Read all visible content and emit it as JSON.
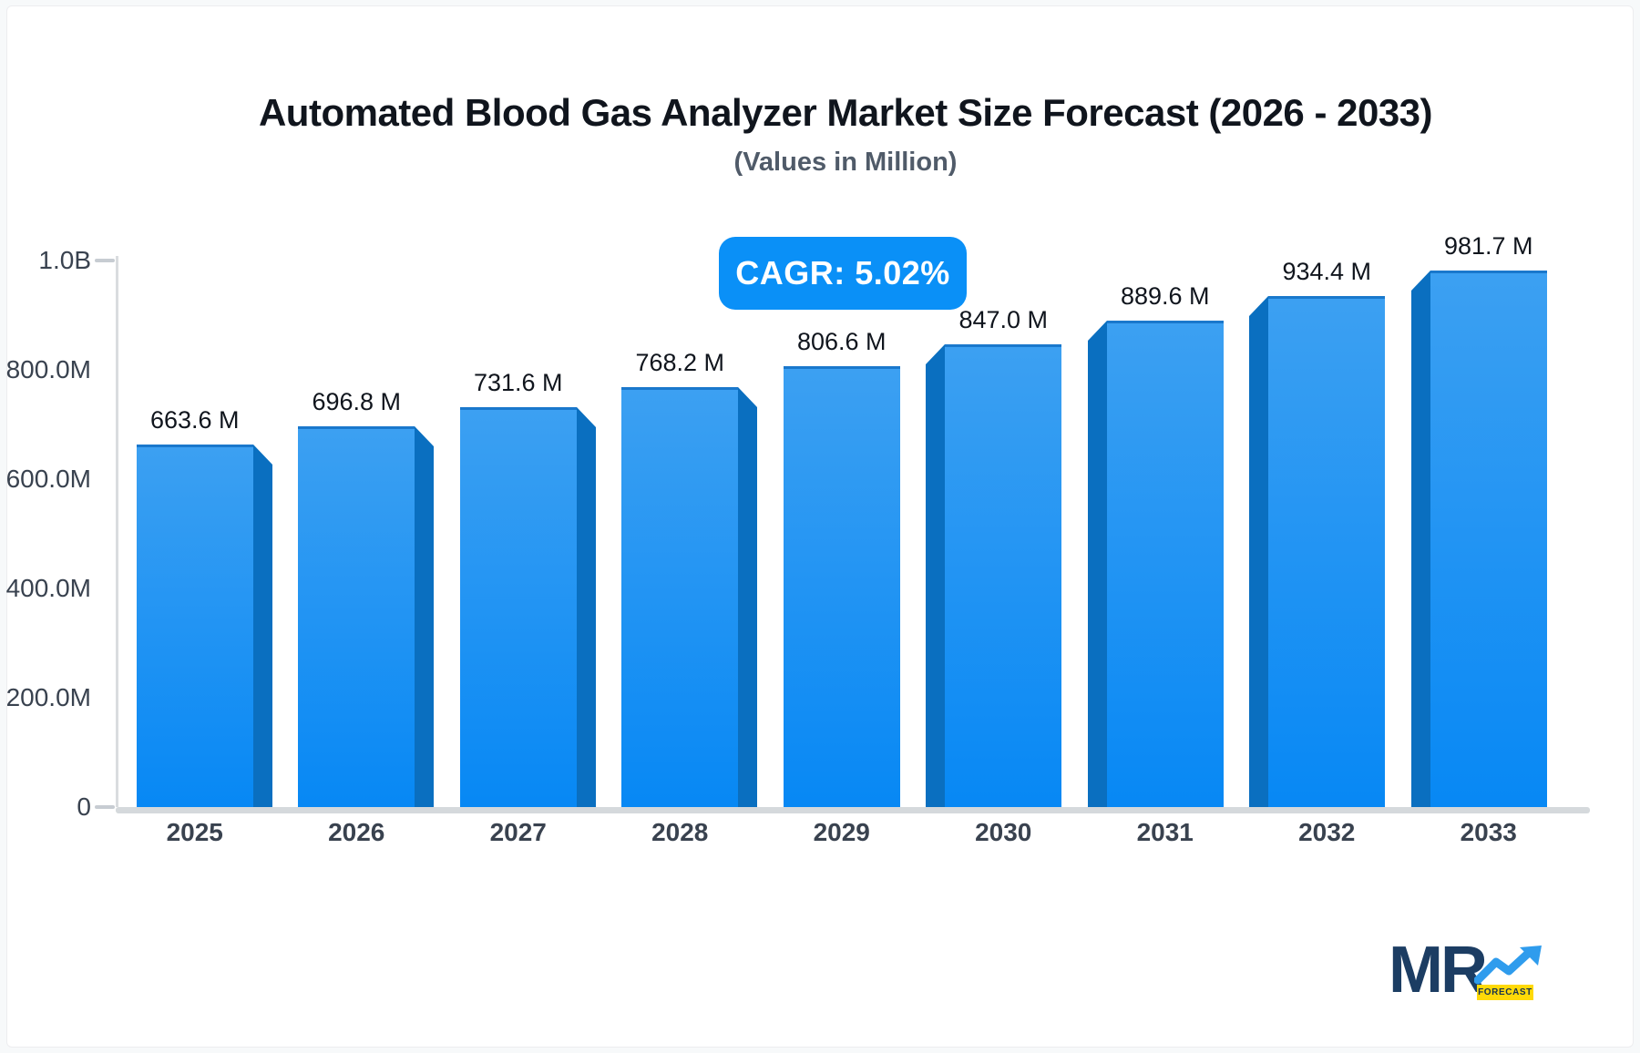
{
  "header": {
    "title": "Automated Blood Gas Analyzer Market Size Forecast (2026 - 2033)",
    "subtitle": "(Values in Million)"
  },
  "badge": {
    "label": "CAGR: 5.02%",
    "bg": "#0a90f7"
  },
  "chart_data": {
    "type": "bar",
    "title": "Automated Blood Gas Analyzer Market Size Forecast (2026 - 2033)",
    "subtitle": "(Values in Million)",
    "categories": [
      "2025",
      "2026",
      "2027",
      "2028",
      "2029",
      "2030",
      "2031",
      "2032",
      "2033"
    ],
    "values_millions": [
      663.6,
      696.8,
      731.6,
      768.2,
      806.6,
      847.0,
      889.6,
      934.4,
      981.7
    ],
    "value_labels": [
      "663.6 M",
      "696.8 M",
      "731.6 M",
      "768.2 M",
      "806.6 M",
      "847.0 M",
      "889.6 M",
      "934.4 M",
      "981.7 M"
    ],
    "y_tick_labels": [
      "1.0B",
      "800.0M",
      "600.0M",
      "400.0M",
      "200.0M",
      "0"
    ],
    "y_tick_values_millions": [
      1000,
      800,
      600,
      400,
      200,
      0
    ],
    "ylim_millions": [
      0,
      1000
    ],
    "cagr": "5.02%",
    "grid": "off",
    "legend": "none",
    "colors": {
      "bar_face_top": "#3ca0f2",
      "bar_face_bottom": "#0788f4",
      "bar_face_edge": "#1a78cc",
      "bar_side": "#0a6fc0",
      "axis": "#d5d9dc",
      "label_dark": "#10151d",
      "axis_text": "#39424f"
    }
  },
  "logo": {
    "text": "MR",
    "badge_label": "FORECAST",
    "navy": "#1c3d63",
    "arrow_blue": "#2f9ced",
    "yellow": "#ffd908"
  }
}
